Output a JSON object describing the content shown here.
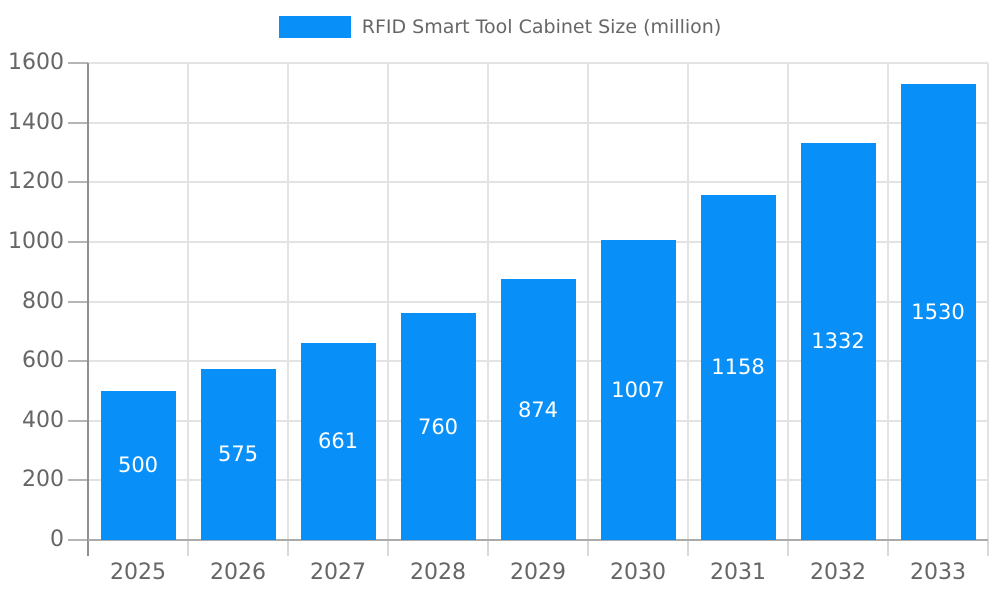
{
  "legend": {
    "label": "RFID Smart Tool Cabinet Size (million)"
  },
  "chart_data": {
    "type": "bar",
    "title": "RFID Smart Tool Cabinet Size (million)",
    "categories": [
      "2025",
      "2026",
      "2027",
      "2028",
      "2029",
      "2030",
      "2031",
      "2032",
      "2033"
    ],
    "values": [
      500,
      575,
      661,
      760,
      874,
      1007,
      1158,
      1332,
      1530
    ],
    "xlabel": "",
    "ylabel": "",
    "ylim": [
      0,
      1600
    ],
    "ytick_step": 200,
    "yticks": [
      0,
      200,
      400,
      600,
      800,
      1000,
      1200,
      1400,
      1600
    ],
    "grid": true,
    "legend_position": "top",
    "bar_color": "#0890F8",
    "value_label_color": "#ffffff",
    "axis_text_color": "#666666",
    "gridline_color": "#e3e3e3",
    "axis_line_color": "#8f8f8f",
    "baseline_color": "#ababab"
  }
}
